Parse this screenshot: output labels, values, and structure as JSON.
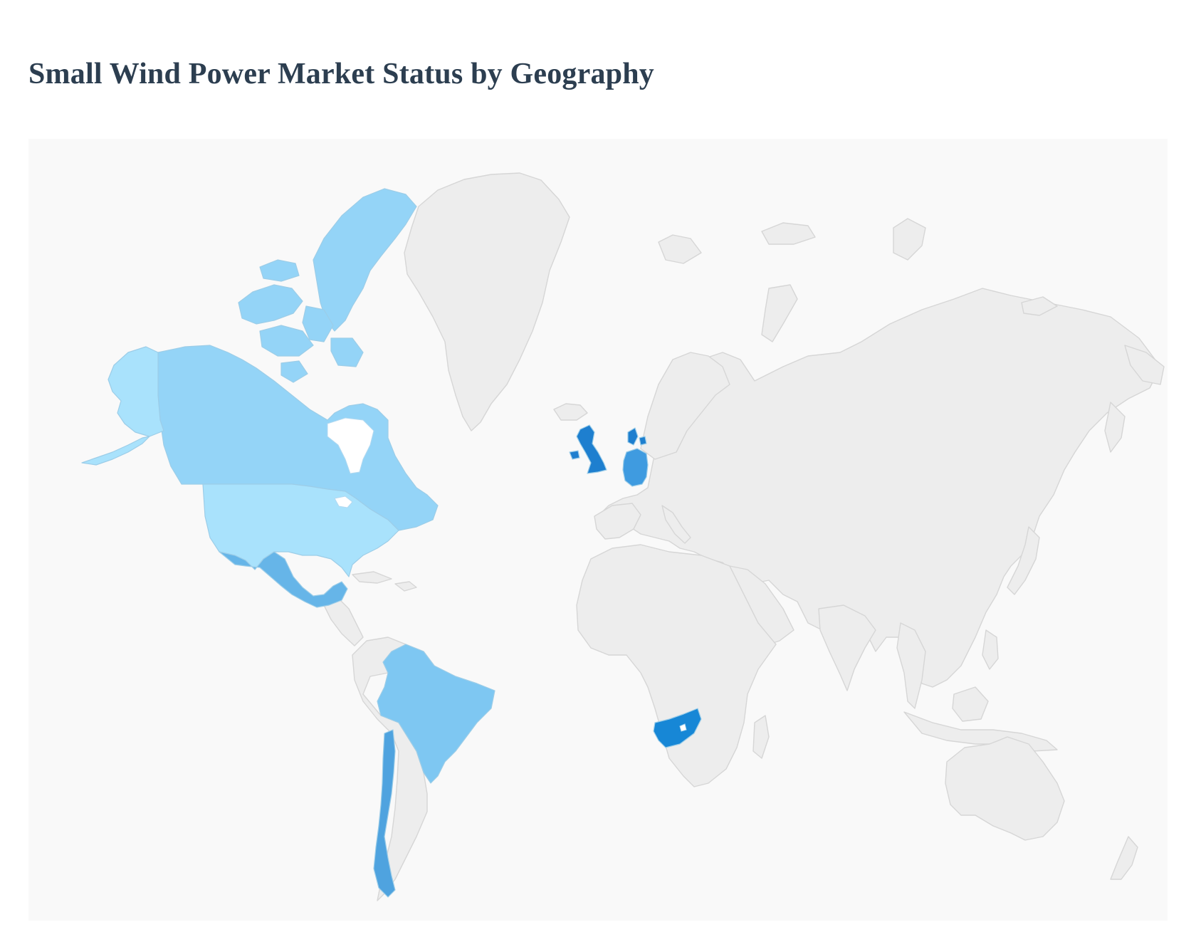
{
  "page": {
    "title": "Small Wind Power Market Status by Geography"
  },
  "map": {
    "projection": "mercator",
    "background_color": "#f9f9f9",
    "no_data_color": "#ededed",
    "border_color": "#d6d6d6",
    "highlighted_regions": [
      {
        "id": "canada",
        "name": "Canada",
        "color": "#94d4f7"
      },
      {
        "id": "alaska",
        "name": "Alaska",
        "color": "#a9e2fc"
      },
      {
        "id": "united-states",
        "name": "United States",
        "color": "#a9e2fc"
      },
      {
        "id": "mexico",
        "name": "Mexico",
        "color": "#66b5e8"
      },
      {
        "id": "brazil",
        "name": "Brazil",
        "color": "#7ec7f2"
      },
      {
        "id": "chile",
        "name": "Chile",
        "color": "#4fa3df"
      },
      {
        "id": "united-kingdom",
        "name": "United Kingdom",
        "color": "#1e7fcf"
      },
      {
        "id": "germany",
        "name": "Germany",
        "color": "#3f9be0"
      },
      {
        "id": "denmark",
        "name": "Denmark",
        "color": "#1e7fcf"
      },
      {
        "id": "south-africa",
        "name": "South Africa",
        "color": "#1787d6"
      }
    ]
  }
}
